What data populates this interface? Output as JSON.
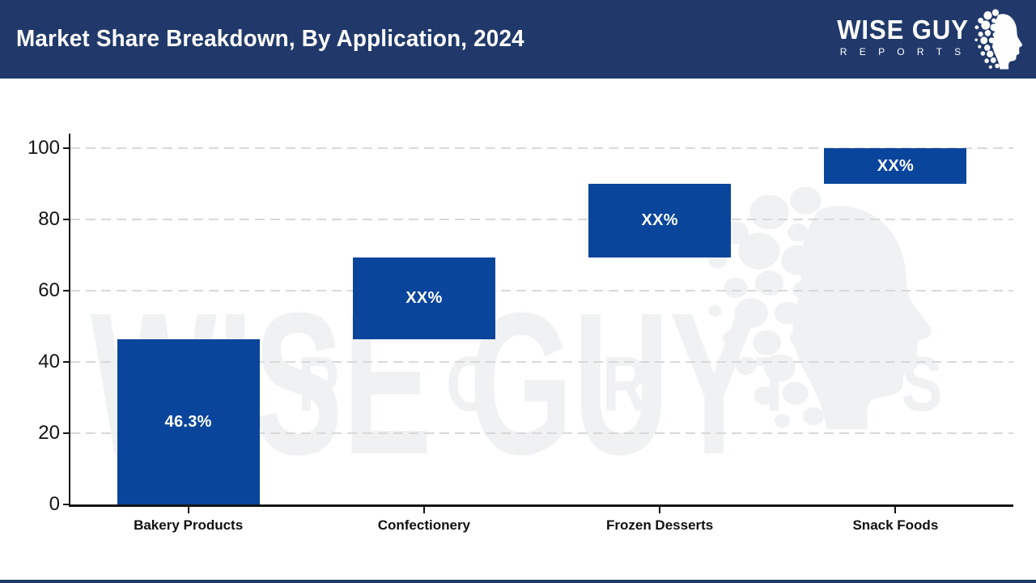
{
  "header": {
    "title": "Market Share Breakdown, By Application, 2024",
    "logo": {
      "line1": "WISE GUY",
      "line2": "R E P O R T S"
    }
  },
  "watermark": {
    "line1": "WISE GUY",
    "line2": "P O R T S"
  },
  "colors": {
    "header_bg": "#21396a",
    "bar": "#0a459c",
    "bar_label": "#ffffff",
    "grid": "#d9d9d9",
    "axis": "#141414",
    "watermark": "#f0f1f3"
  },
  "chart_data": {
    "type": "bar",
    "subtype": "waterfall",
    "title": "Market Share Breakdown, By Application, 2024",
    "categories": [
      "Bakery Products",
      "Confectionery",
      "Frozen Desserts",
      "Snack Foods"
    ],
    "bars": [
      {
        "category": "Bakery Products",
        "start": 0,
        "end": 46.3,
        "label": "46.3%"
      },
      {
        "category": "Confectionery",
        "start": 46.3,
        "end": 69.4,
        "label": "XX%"
      },
      {
        "category": "Frozen Desserts",
        "start": 69.4,
        "end": 90.0,
        "label": "XX%"
      },
      {
        "category": "Snack Foods",
        "start": 90.0,
        "end": 100.0,
        "label": "XX%"
      }
    ],
    "xlabel": "",
    "ylabel": "",
    "ylim": [
      0,
      100
    ],
    "yticks": [
      0,
      20,
      40,
      60,
      80,
      100
    ],
    "grid": "dashed-horizontal",
    "legend": "none"
  }
}
